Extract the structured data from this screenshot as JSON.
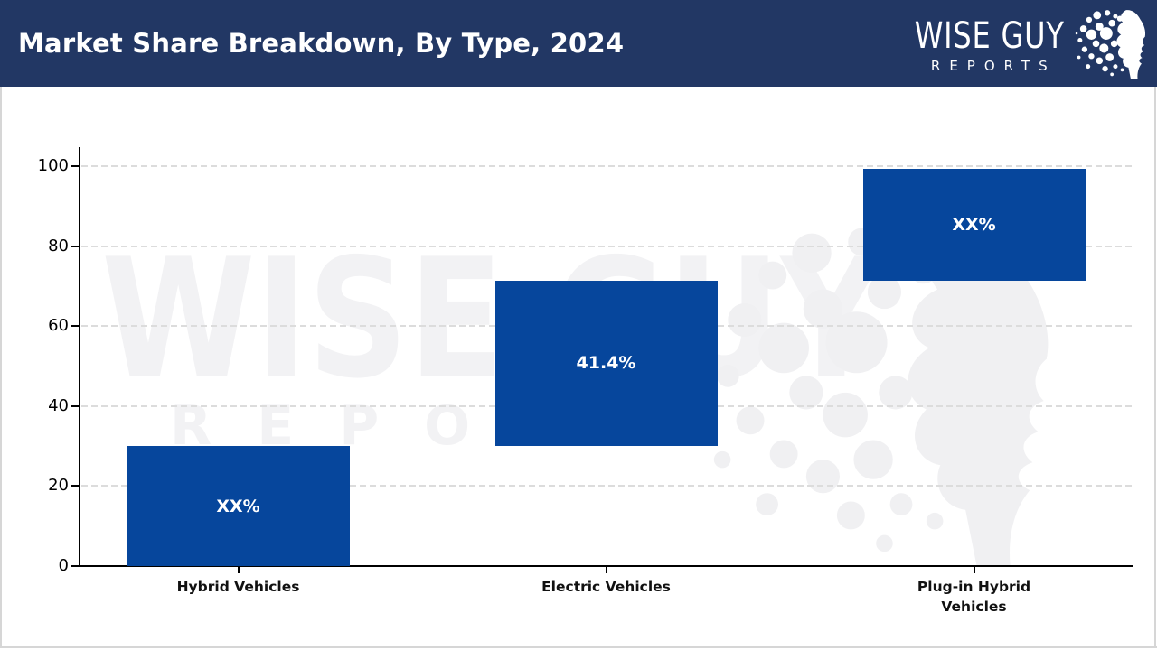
{
  "header": {
    "title": "Market Share Breakdown, By Type, 2024",
    "logo": {
      "line1": "WISE GUY",
      "line2": "REPORTS"
    },
    "bg_color": "#223764"
  },
  "watermark": {
    "line1": "WISE GUY",
    "line2": "REPORTS"
  },
  "chart_data": {
    "type": "bar",
    "subtype": "waterfall",
    "title": "Market Share Breakdown, By Type, 2024",
    "categories": [
      "Hybrid Vehicles",
      "Electric Vehicles",
      "Plug-in Hybrid Vehicles"
    ],
    "segments": [
      {
        "category": "Hybrid Vehicles",
        "base": 0,
        "value": 30,
        "label": "XX%"
      },
      {
        "category": "Electric Vehicles",
        "base": 30,
        "value": 41.4,
        "label": "41.4%"
      },
      {
        "category": "Plug-in Hybrid Vehicles",
        "base": 71.4,
        "value": 28,
        "label": "XX%"
      }
    ],
    "yticks": [
      0,
      20,
      40,
      60,
      80,
      100
    ],
    "ylim": [
      0,
      105
    ],
    "xlabel": "",
    "ylabel": "",
    "grid": "horizontal-dashed",
    "legend": "none",
    "bar_color": "#06469c",
    "label_color": "#ffffff",
    "axis_color": "#000000",
    "gridline_color": "#dcdcdc"
  }
}
